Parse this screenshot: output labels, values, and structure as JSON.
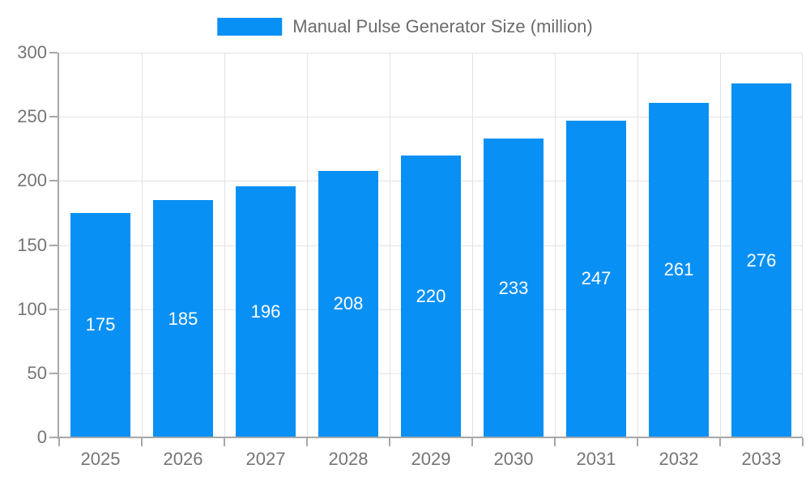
{
  "chart_data": {
    "type": "bar",
    "title": "Manual Pulse Generator Size (million)",
    "series_name": "Manual Pulse Generator Size (million)",
    "categories": [
      "2025",
      "2026",
      "2027",
      "2028",
      "2029",
      "2030",
      "2031",
      "2032",
      "2033"
    ],
    "values": [
      175,
      185,
      196,
      208,
      220,
      233,
      247,
      261,
      276
    ],
    "yticks": [
      0,
      50,
      100,
      150,
      200,
      250,
      300
    ],
    "ylim": [
      0,
      300
    ],
    "xlabel": "",
    "ylabel": "",
    "grid": true,
    "legend_position": "top-center",
    "value_labels_shown": true,
    "colors": {
      "bar": "#0990f5",
      "grid": "#e3e3e3",
      "axis": "#a8a8a8",
      "tick_label": "#757575",
      "legend_text": "#6b6b6b",
      "value_label": "#ffffff",
      "background": "#ffffff"
    }
  }
}
